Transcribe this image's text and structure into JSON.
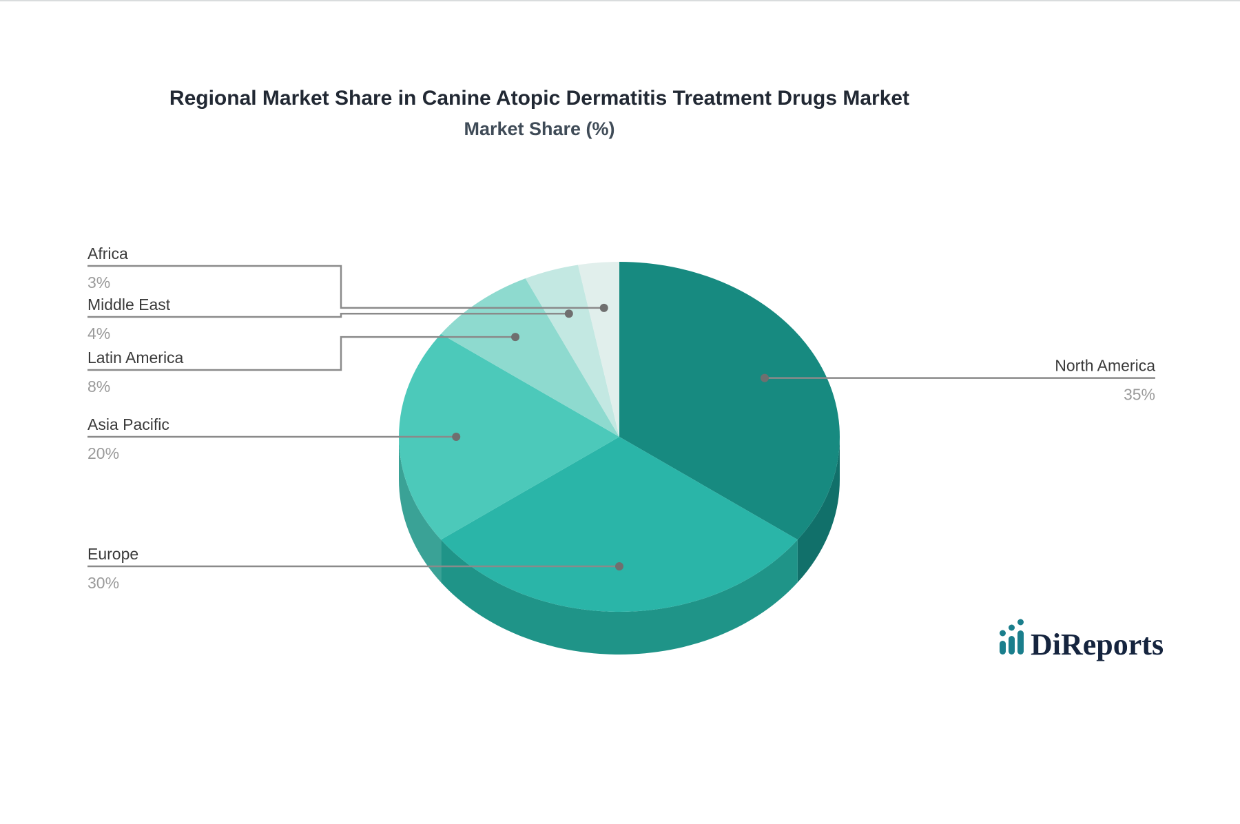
{
  "header": {
    "title": "Regional Market Share in Canine Atopic Dermatitis Treatment Drugs Market",
    "subtitle": "Market Share (%)"
  },
  "chart_data": {
    "type": "pie",
    "title": "Regional Market Share in Canine Atopic Dermatitis Treatment Drugs Market",
    "subtitle": "Market Share (%)",
    "unit": "%",
    "style": "3d-pie",
    "start_angle": "12-o-clock, clockwise",
    "legend_position": "none (leader-line labels)",
    "slices": [
      {
        "label": "North America",
        "value": 35,
        "color": "#178a80",
        "side_color": "#11706a"
      },
      {
        "label": "Europe",
        "value": 30,
        "color": "#2ab5a8",
        "side_color": "#1f9488"
      },
      {
        "label": "Asia Pacific",
        "value": 20,
        "color": "#4cc9ba",
        "side_color": "#3aa296"
      },
      {
        "label": "Latin America",
        "value": 8,
        "color": "#8edacf",
        "side_color": "#74b8ae"
      },
      {
        "label": "Middle East",
        "value": 4,
        "color": "#c3e8e2",
        "side_color": "#a2c4be"
      },
      {
        "label": "Africa",
        "value": 3,
        "color": "#e1efec",
        "side_color": "#bccac7"
      }
    ]
  },
  "colors": {
    "leader_line": "#8a8a8a",
    "leader_dot": "#6f6f6f",
    "label_text": "#3a3a3a",
    "percent_text": "#9a9a9a",
    "logo": "#1a7e8c"
  },
  "logo": {
    "text": "DiReports"
  }
}
